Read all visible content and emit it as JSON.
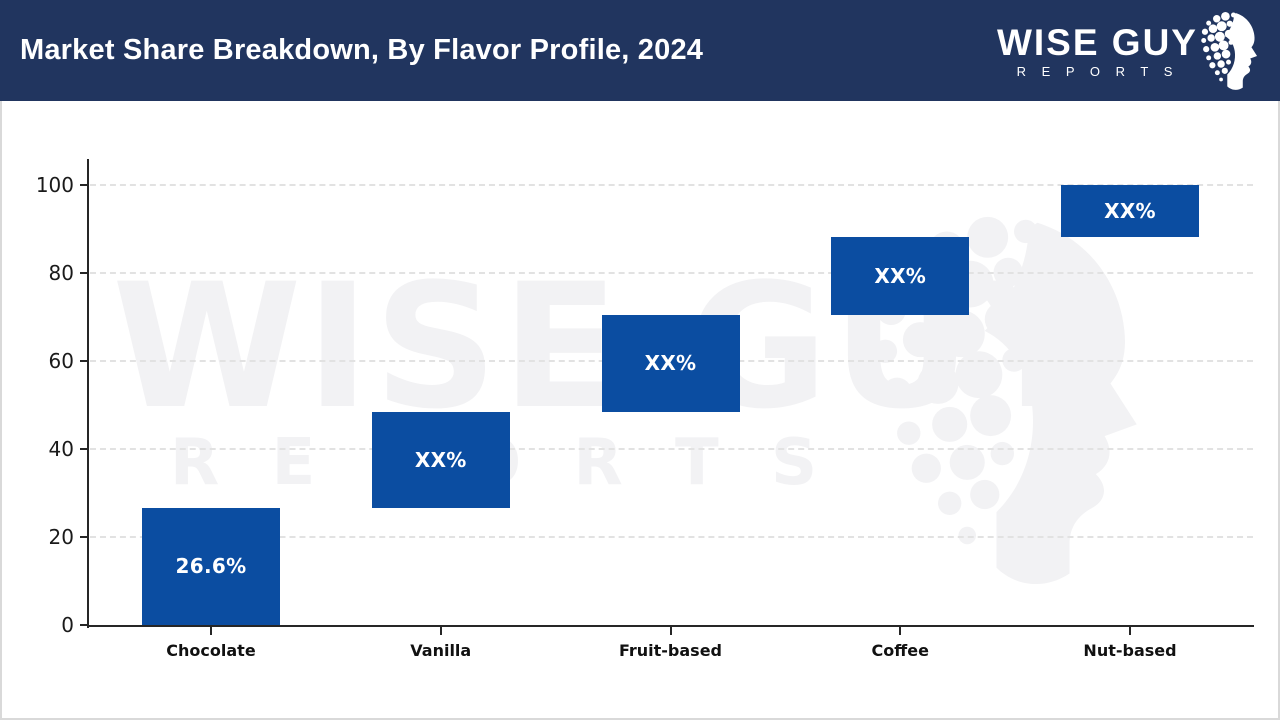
{
  "header": {
    "title": "Market Share Breakdown, By Flavor Profile, 2024",
    "logo": {
      "line1": "WISE GUY",
      "line2": "R E P O R T S",
      "icon": "dotted-head-profile-icon"
    }
  },
  "watermark": {
    "line1": "WISE GUY",
    "line2": "R E P O R T S",
    "icon": "dotted-head-profile-icon"
  },
  "colors": {
    "header_bg": "#21355f",
    "bar": "#0b4da1",
    "axis": "#262626",
    "gridline": "#e2e2e2",
    "watermark": "#f2f2f4",
    "bar_label": "#ffffff",
    "title_text": "#ffffff"
  },
  "chart_data": {
    "type": "bar",
    "subtype": "waterfall",
    "title": "Market Share Breakdown, By Flavor Profile, 2024",
    "xlabel": "",
    "ylabel": "",
    "categories": [
      "Chocolate",
      "Vanilla",
      "Fruit-based",
      "Coffee",
      "Nut-based"
    ],
    "segments": [
      {
        "category": "Chocolate",
        "start": 0,
        "end": 26.6,
        "label": "26.6%"
      },
      {
        "category": "Vanilla",
        "start": 26.6,
        "end": 48.4,
        "label": "XX%"
      },
      {
        "category": "Fruit-based",
        "start": 48.4,
        "end": 70.5,
        "label": "XX%"
      },
      {
        "category": "Coffee",
        "start": 70.5,
        "end": 88.2,
        "label": "XX%"
      },
      {
        "category": "Nut-based",
        "start": 88.2,
        "end": 100,
        "label": "XX%"
      }
    ],
    "yticks": [
      0,
      20,
      40,
      60,
      80,
      100
    ],
    "ylim": [
      0,
      105.7
    ],
    "grid": "horizontal-dashed",
    "legend": "none",
    "bar_color": "#0b4da1"
  }
}
